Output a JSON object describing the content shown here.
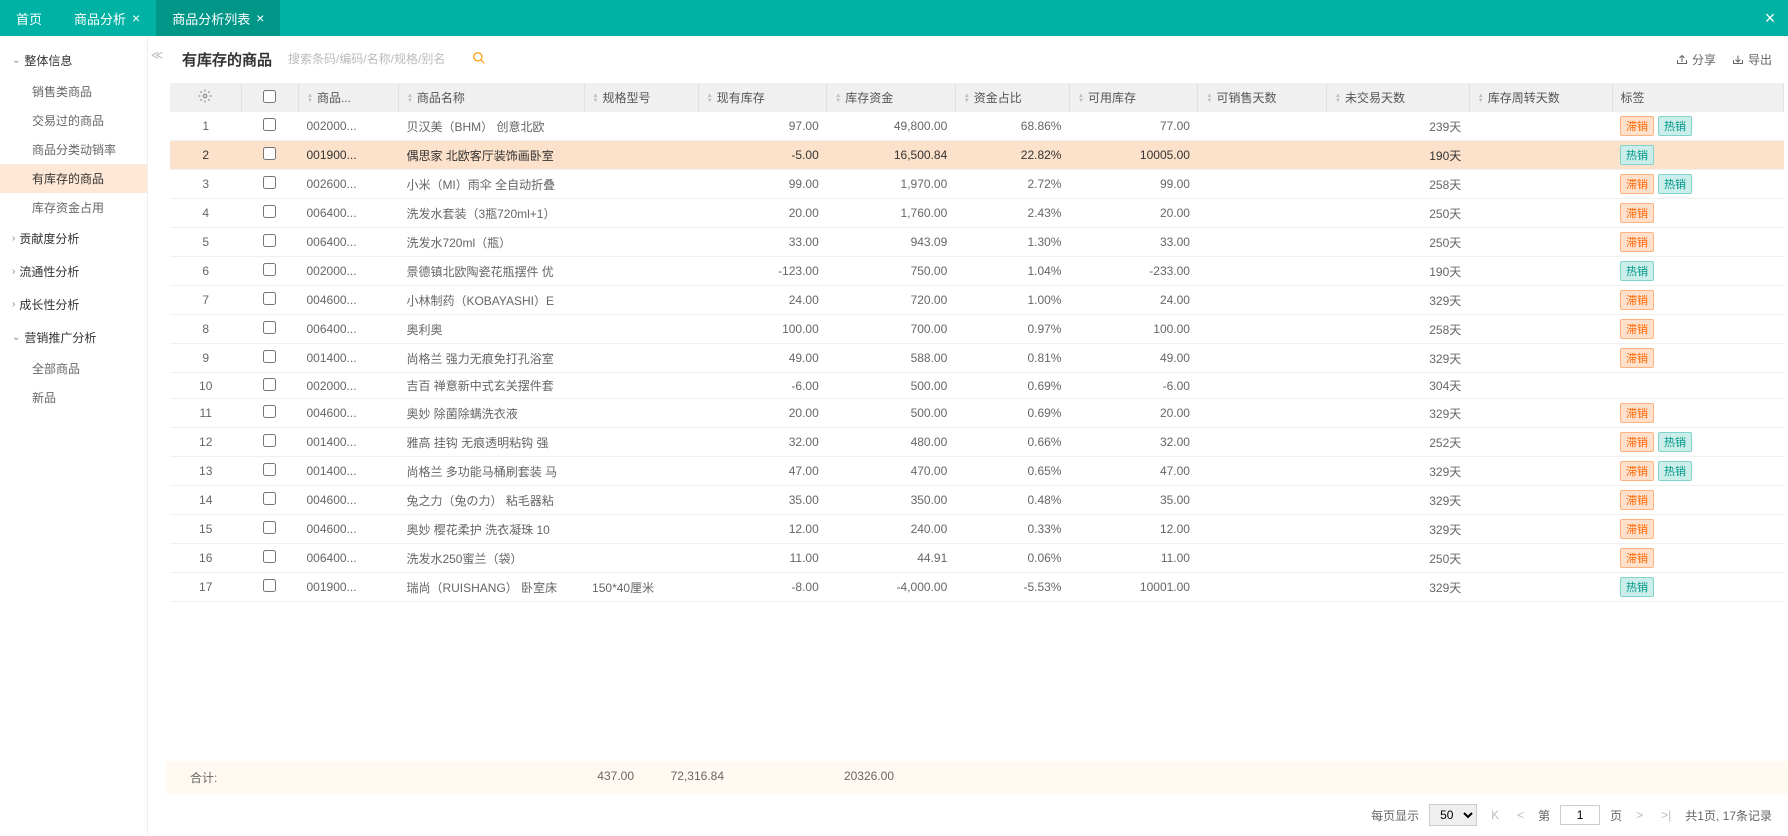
{
  "tabs": {
    "items": [
      {
        "label": "首页",
        "closable": false
      },
      {
        "label": "商品分析",
        "closable": true
      },
      {
        "label": "商品分析列表",
        "closable": true,
        "active": true
      }
    ]
  },
  "sidebar": {
    "groups": [
      {
        "title": "整体信息",
        "expanded": true,
        "items": [
          {
            "label": "销售类商品",
            "key": "sales"
          },
          {
            "label": "交易过的商品",
            "key": "traded"
          },
          {
            "label": "商品分类动销率",
            "key": "category-rate"
          },
          {
            "label": "有库存的商品",
            "key": "in-stock",
            "active": true
          },
          {
            "label": "库存资金占用",
            "key": "fund-usage"
          }
        ]
      },
      {
        "title": "贡献度分析",
        "expanded": false,
        "items": []
      },
      {
        "title": "流通性分析",
        "expanded": false,
        "items": []
      },
      {
        "title": "成长性分析",
        "expanded": false,
        "items": []
      },
      {
        "title": "营销推广分析",
        "expanded": true,
        "items": [
          {
            "label": "全部商品",
            "key": "all"
          },
          {
            "label": "新品",
            "key": "new"
          }
        ]
      }
    ]
  },
  "header": {
    "title": "有库存的商品",
    "search_placeholder": "搜索条码/编码/名称/规格/别名",
    "share": "分享",
    "export": "导出"
  },
  "table": {
    "columns": [
      {
        "key": "idx",
        "label": ""
      },
      {
        "key": "chk",
        "label": ""
      },
      {
        "key": "code",
        "label": "商品..."
      },
      {
        "key": "name",
        "label": "商品名称"
      },
      {
        "key": "spec",
        "label": "规格型号"
      },
      {
        "key": "stock",
        "label": "现有库存"
      },
      {
        "key": "fund",
        "label": "库存资金"
      },
      {
        "key": "pct",
        "label": "资金占比"
      },
      {
        "key": "avail",
        "label": "可用库存"
      },
      {
        "key": "sell_days",
        "label": "可销售天数"
      },
      {
        "key": "no_trade_days",
        "label": "未交易天数"
      },
      {
        "key": "turnover_days",
        "label": "库存周转天数"
      },
      {
        "key": "tags",
        "label": "标签"
      }
    ],
    "rows": [
      {
        "idx": 1,
        "code": "002000...",
        "name": "贝汉美（BHM） 创意北欧",
        "spec": "",
        "stock": "97.00",
        "fund": "49,800.00",
        "pct": "68.86%",
        "avail": "77.00",
        "sell_days": "",
        "no_trade_days": "239天",
        "turnover_days": "",
        "tags": [
          "滞销",
          "热销"
        ]
      },
      {
        "idx": 2,
        "code": "001900...",
        "name": "偶思家 北欧客厅装饰画卧室",
        "spec": "",
        "stock": "-5.00",
        "fund": "16,500.84",
        "pct": "22.82%",
        "avail": "10005.00",
        "sell_days": "",
        "no_trade_days": "190天",
        "turnover_days": "",
        "tags": [
          "热销"
        ],
        "highlight": true
      },
      {
        "idx": 3,
        "code": "002600...",
        "name": "小米（MI）雨伞 全自动折叠",
        "spec": "",
        "stock": "99.00",
        "fund": "1,970.00",
        "pct": "2.72%",
        "avail": "99.00",
        "sell_days": "",
        "no_trade_days": "258天",
        "turnover_days": "",
        "tags": [
          "滞销",
          "热销"
        ]
      },
      {
        "idx": 4,
        "code": "006400...",
        "name": "洗发水套装（3瓶720ml+1）",
        "spec": "",
        "stock": "20.00",
        "fund": "1,760.00",
        "pct": "2.43%",
        "avail": "20.00",
        "sell_days": "",
        "no_trade_days": "250天",
        "turnover_days": "",
        "tags": [
          "滞销"
        ]
      },
      {
        "idx": 5,
        "code": "006400...",
        "name": "洗发水720ml（瓶）",
        "spec": "",
        "stock": "33.00",
        "fund": "943.09",
        "pct": "1.30%",
        "avail": "33.00",
        "sell_days": "",
        "no_trade_days": "250天",
        "turnover_days": "",
        "tags": [
          "滞销"
        ]
      },
      {
        "idx": 6,
        "code": "002000...",
        "name": "景德镇北欧陶瓷花瓶摆件 优",
        "spec": "",
        "stock": "-123.00",
        "fund": "750.00",
        "pct": "1.04%",
        "avail": "-233.00",
        "sell_days": "",
        "no_trade_days": "190天",
        "turnover_days": "",
        "tags": [
          "热销"
        ]
      },
      {
        "idx": 7,
        "code": "004600...",
        "name": "小林制药（KOBAYASHI）E",
        "spec": "",
        "stock": "24.00",
        "fund": "720.00",
        "pct": "1.00%",
        "avail": "24.00",
        "sell_days": "",
        "no_trade_days": "329天",
        "turnover_days": "",
        "tags": [
          "滞销"
        ]
      },
      {
        "idx": 8,
        "code": "006400...",
        "name": "奥利奥",
        "spec": "",
        "stock": "100.00",
        "fund": "700.00",
        "pct": "0.97%",
        "avail": "100.00",
        "sell_days": "",
        "no_trade_days": "258天",
        "turnover_days": "",
        "tags": [
          "滞销"
        ]
      },
      {
        "idx": 9,
        "code": "001400...",
        "name": "尚格兰 强力无痕免打孔浴室",
        "spec": "",
        "stock": "49.00",
        "fund": "588.00",
        "pct": "0.81%",
        "avail": "49.00",
        "sell_days": "",
        "no_trade_days": "329天",
        "turnover_days": "",
        "tags": [
          "滞销"
        ]
      },
      {
        "idx": 10,
        "code": "002000...",
        "name": "吉百 禅意新中式玄关摆件套",
        "spec": "",
        "stock": "-6.00",
        "fund": "500.00",
        "pct": "0.69%",
        "avail": "-6.00",
        "sell_days": "",
        "no_trade_days": "304天",
        "turnover_days": "",
        "tags": []
      },
      {
        "idx": 11,
        "code": "004600...",
        "name": "奥妙 除菌除螨洗衣液",
        "spec": "",
        "stock": "20.00",
        "fund": "500.00",
        "pct": "0.69%",
        "avail": "20.00",
        "sell_days": "",
        "no_trade_days": "329天",
        "turnover_days": "",
        "tags": [
          "滞销"
        ]
      },
      {
        "idx": 12,
        "code": "001400...",
        "name": "雅高 挂钩 无痕透明粘钩 强",
        "spec": "",
        "stock": "32.00",
        "fund": "480.00",
        "pct": "0.66%",
        "avail": "32.00",
        "sell_days": "",
        "no_trade_days": "252天",
        "turnover_days": "",
        "tags": [
          "滞销",
          "热销"
        ]
      },
      {
        "idx": 13,
        "code": "001400...",
        "name": "尚格兰 多功能马桶刷套装 马",
        "spec": "",
        "stock": "47.00",
        "fund": "470.00",
        "pct": "0.65%",
        "avail": "47.00",
        "sell_days": "",
        "no_trade_days": "329天",
        "turnover_days": "",
        "tags": [
          "滞销",
          "热销"
        ]
      },
      {
        "idx": 14,
        "code": "004600...",
        "name": "兔之力（兔の力） 粘毛器粘",
        "spec": "",
        "stock": "35.00",
        "fund": "350.00",
        "pct": "0.48%",
        "avail": "35.00",
        "sell_days": "",
        "no_trade_days": "329天",
        "turnover_days": "",
        "tags": [
          "滞销"
        ]
      },
      {
        "idx": 15,
        "code": "004600...",
        "name": "奥妙 樱花柔护 洗衣凝珠 10",
        "spec": "",
        "stock": "12.00",
        "fund": "240.00",
        "pct": "0.33%",
        "avail": "12.00",
        "sell_days": "",
        "no_trade_days": "329天",
        "turnover_days": "",
        "tags": [
          "滞销"
        ]
      },
      {
        "idx": 16,
        "code": "006400...",
        "name": "洗发水250蜜兰（袋）",
        "spec": "",
        "stock": "11.00",
        "fund": "44.91",
        "pct": "0.06%",
        "avail": "11.00",
        "sell_days": "",
        "no_trade_days": "250天",
        "turnover_days": "",
        "tags": [
          "滞销"
        ]
      },
      {
        "idx": 17,
        "code": "001900...",
        "name": "瑞尚（RUISHANG） 卧室床",
        "spec": "150*40厘米",
        "stock": "-8.00",
        "fund": "-4,000.00",
        "pct": "-5.53%",
        "avail": "10001.00",
        "sell_days": "",
        "no_trade_days": "329天",
        "turnover_days": "",
        "tags": [
          "热销"
        ]
      }
    ],
    "summary": {
      "label": "合计:",
      "stock": "437.00",
      "fund": "72,316.84",
      "avail": "20326.00"
    }
  },
  "pager": {
    "per_page_label": "每页显示",
    "per_page": "50",
    "prefix": "第",
    "page": "1",
    "suffix": "页",
    "info": "共1页, 17条记录"
  },
  "tag_styles": {
    "滞销": "tag-orange",
    "热销": "tag-teal"
  },
  "colors": {
    "primary": "#00b2a4",
    "primary_dark": "#009688",
    "highlight_row": "#fde2cb",
    "summary_bg": "#fff9f2",
    "nav_active_bg": "#ffe8d6"
  }
}
